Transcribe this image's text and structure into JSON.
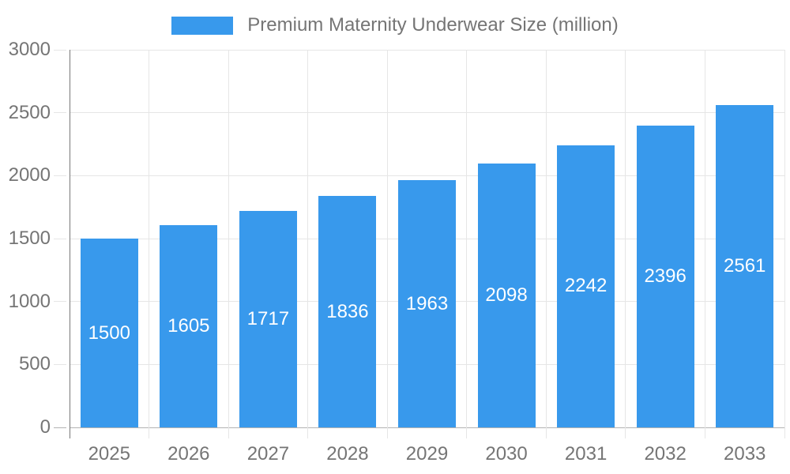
{
  "chart_data": {
    "type": "bar",
    "title": "Premium Maternity Underwear Size (million)",
    "categories": [
      "2025",
      "2026",
      "2027",
      "2028",
      "2029",
      "2030",
      "2031",
      "2032",
      "2033"
    ],
    "values": [
      1500,
      1605,
      1717,
      1836,
      1963,
      2098,
      2242,
      2396,
      2561
    ],
    "xlabel": "",
    "ylabel": "",
    "ylim": [
      0,
      3000
    ],
    "ytick_step": 500,
    "grid": true,
    "legend_position": "top",
    "value_labels": "inside-center",
    "colors": {
      "bar": "#3899EC",
      "bar_value_label": "#FFFFFF",
      "axis_line": "#787878",
      "baseline": "#B3B3B3",
      "grid_line": "#E6E6E6",
      "tick_label": "#757575",
      "legend_text": "#757575",
      "background": "#FFFFFF"
    }
  }
}
